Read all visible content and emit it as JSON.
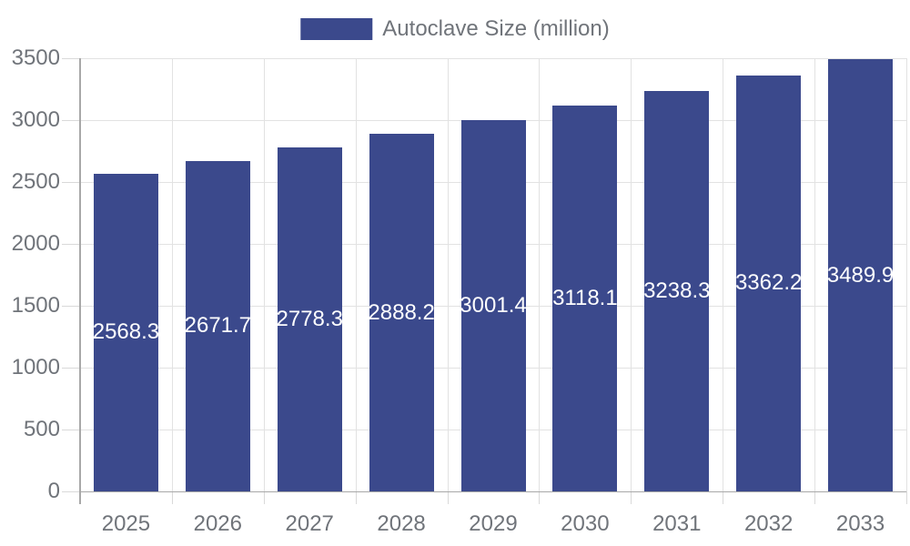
{
  "legend": {
    "label": "Autoclave Size (million)"
  },
  "colors": {
    "bar": "#3B498C",
    "axis_line": "#A8A8A8",
    "grid_line": "#E2E2E2",
    "tick_line": "#D9D9D9",
    "axis_text": "#70747A",
    "value_text": "#FFFFFF",
    "background": "#FFFFFF"
  },
  "chart_data": {
    "type": "bar",
    "title": "Autoclave Size (million)",
    "categories": [
      "2025",
      "2026",
      "2027",
      "2028",
      "2029",
      "2030",
      "2031",
      "2032",
      "2033"
    ],
    "series": [
      {
        "name": "Autoclave Size (million)",
        "color": "#3B498C",
        "values": [
          2568.3,
          2671.7,
          2778.3,
          2888.2,
          3001.4,
          3118.1,
          3238.3,
          3362.2,
          3489.9
        ]
      }
    ],
    "xlabel": "",
    "ylabel": "",
    "ylim": [
      0,
      3500
    ],
    "yticks": [
      0,
      500,
      1000,
      1500,
      2000,
      2500,
      3000,
      3500
    ],
    "grid": true,
    "legend_position": "top-center",
    "value_label_position": "inside-center",
    "value_label_decimals": 1
  }
}
